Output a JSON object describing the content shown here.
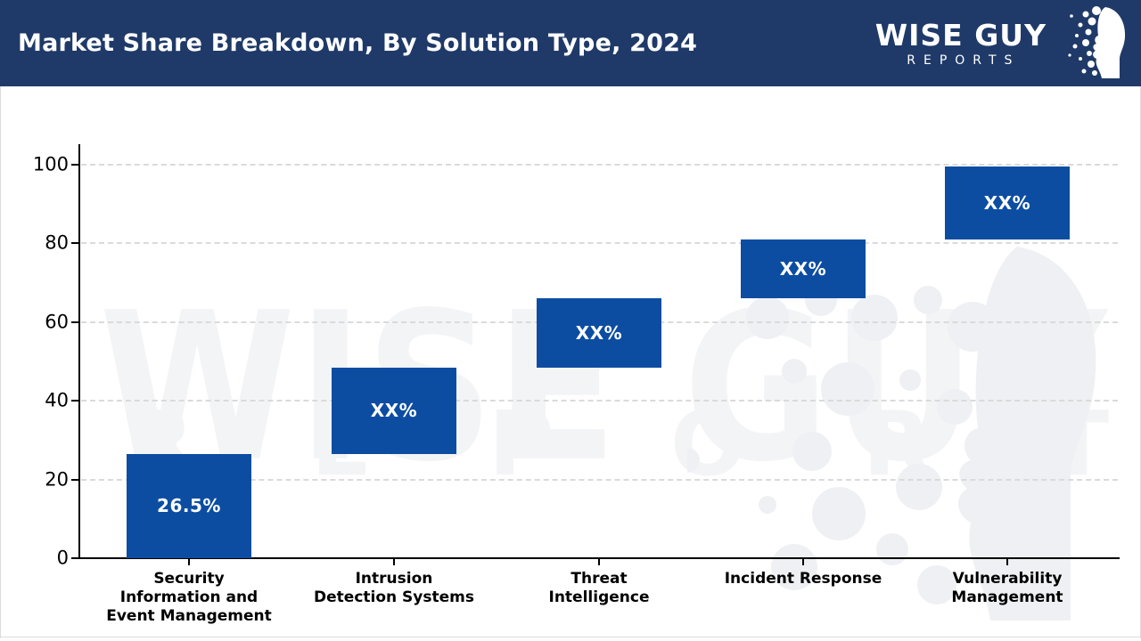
{
  "header": {
    "title": "Market Share Breakdown, By Solution Type, 2024",
    "logo": {
      "line1": "WISE GUY",
      "line2": "REPORTS"
    }
  },
  "watermark": {
    "line1": "WISE GUY",
    "line2": "REPORTS"
  },
  "colors": {
    "header_bg": "#1f3a68",
    "bar_fill": "#0c4da2",
    "bar_label_text": "#ffffff",
    "gridline": "#dadada",
    "axis": "#000000",
    "watermark": "#f3f4f6"
  },
  "chart_data": {
    "type": "bar",
    "subtype": "waterfall",
    "title": "Market Share Breakdown, By Solution Type, 2024",
    "categories": [
      "Security\nInformation and\nEvent Management",
      "Intrusion\nDetection Systems",
      "Threat\nIntelligence",
      "Incident Response",
      "Vulnerability\nManagement"
    ],
    "segments": [
      {
        "start": 0,
        "end": 26.5,
        "label": "26.5%"
      },
      {
        "start": 26.5,
        "end": 48.5,
        "label": "XX%"
      },
      {
        "start": 48.5,
        "end": 66,
        "label": "XX%"
      },
      {
        "start": 66,
        "end": 81,
        "label": "XX%"
      },
      {
        "start": 81,
        "end": 99.5,
        "label": "XX%"
      }
    ],
    "xlabel": "",
    "ylabel": "",
    "ylim": [
      0,
      100
    ],
    "yticks": [
      0,
      20,
      40,
      60,
      80,
      100
    ],
    "grid": "horizontal-dashed",
    "legend": "none"
  }
}
